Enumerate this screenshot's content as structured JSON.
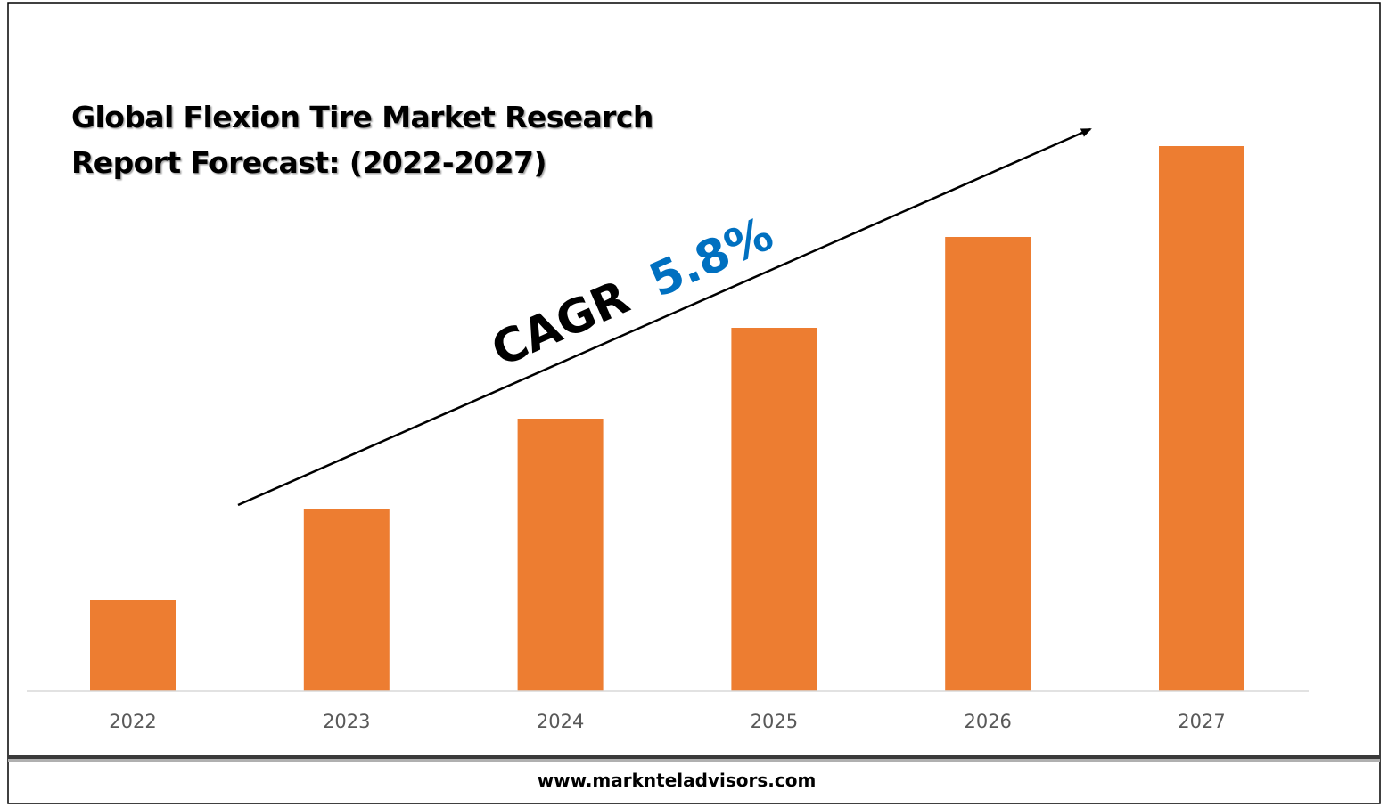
{
  "chart_data": {
    "type": "bar",
    "title_lines": [
      "Global Flexion Tire Market Research",
      "Report Forecast: (2022-2027)"
    ],
    "categories": [
      "2022",
      "2023",
      "2024",
      "2025",
      "2026",
      "2027"
    ],
    "values": [
      1,
      2,
      3,
      4,
      5,
      6
    ],
    "ylim": [
      0,
      6
    ],
    "y_axis_shown": false,
    "grid": false,
    "legend": "none",
    "bar_color": "#ED7D31",
    "annotation": {
      "label": "CAGR",
      "value": "5.8%",
      "label_color": "#000000",
      "value_color": "#0070C0"
    }
  },
  "footer": {
    "website": "www.marknteladvisors.com"
  },
  "colors": {
    "axis_line": "#D9D9D9",
    "frame": "#000000",
    "tick_text": "#595959"
  }
}
